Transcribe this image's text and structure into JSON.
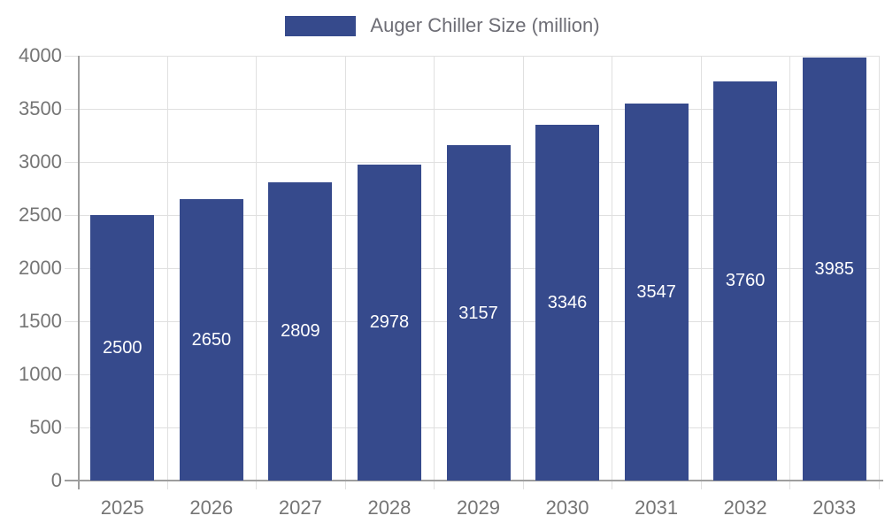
{
  "legend": {
    "label": "Auger Chiller Size (million)"
  },
  "colors": {
    "bar": "#364A8C",
    "bar_label": "#ffffff",
    "grid": "#e0e0e0",
    "axis": "#9e9e9e",
    "tick_label": "#757575",
    "legend_text": "#6d6d75"
  },
  "chart_data": {
    "type": "bar",
    "title": "",
    "xlabel": "",
    "ylabel": "",
    "series_name": "Auger Chiller Size (million)",
    "categories": [
      "2025",
      "2026",
      "2027",
      "2028",
      "2029",
      "2030",
      "2031",
      "2032",
      "2033"
    ],
    "values": [
      2500,
      2650,
      2809,
      2978,
      3157,
      3346,
      3547,
      3760,
      3985
    ],
    "value_labels": [
      "2500",
      "2650",
      "2809",
      "2978",
      "3157",
      "3346",
      "3547",
      "3760",
      "3985"
    ],
    "ylim": [
      0,
      4000
    ],
    "yticks": [
      0,
      500,
      1000,
      1500,
      2000,
      2500,
      3000,
      3500,
      4000
    ],
    "grid": true,
    "legend_position": "top",
    "value_label_position": "inside-center"
  }
}
